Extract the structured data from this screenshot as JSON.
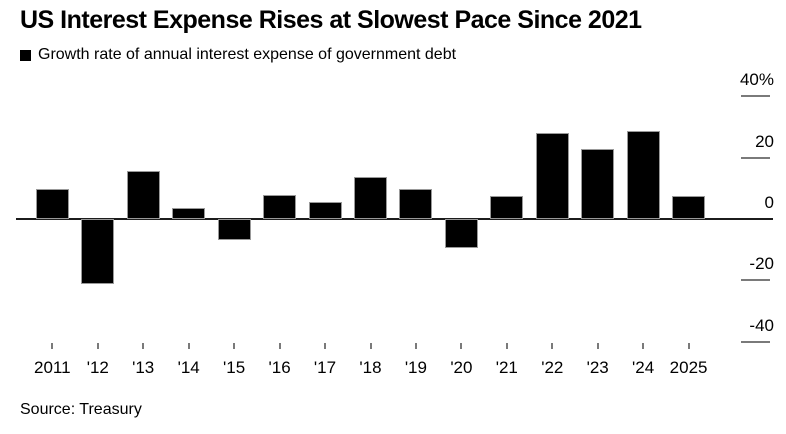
{
  "header": {
    "title": "US Interest Expense Rises at Slowest Pace Since 2021",
    "legend": {
      "label": "Growth rate of annual interest expense of government debt",
      "marker_color": "#000000"
    }
  },
  "chart_data": {
    "type": "bar",
    "title": "US Interest Expense Rises at Slowest Pace Since 2021",
    "legend_label": "Growth rate of annual interest expense of government debt",
    "categories": [
      "2011",
      "'12",
      "'13",
      "'14",
      "'15",
      "'16",
      "'17",
      "'18",
      "'19",
      "'20",
      "'21",
      "'22",
      "'23",
      "'24",
      "2025"
    ],
    "values": [
      9.7,
      -21.0,
      15.7,
      3.6,
      -6.8,
      7.8,
      5.7,
      13.8,
      9.8,
      -9.3,
      7.6,
      27.9,
      22.8,
      28.6,
      7.4
    ],
    "unit": "%",
    "xlabel": "",
    "ylabel": "",
    "ylim": [
      -44,
      42
    ],
    "y_ticks": [
      40,
      20,
      0,
      -20,
      -40
    ],
    "y_tick_labels": [
      "40%",
      "20",
      "0",
      "-20",
      "-40"
    ],
    "y_axis_position": "right",
    "grid": false,
    "baseline": 0,
    "bar_color": "#000000"
  },
  "footer": {
    "source": "Source: Treasury"
  }
}
